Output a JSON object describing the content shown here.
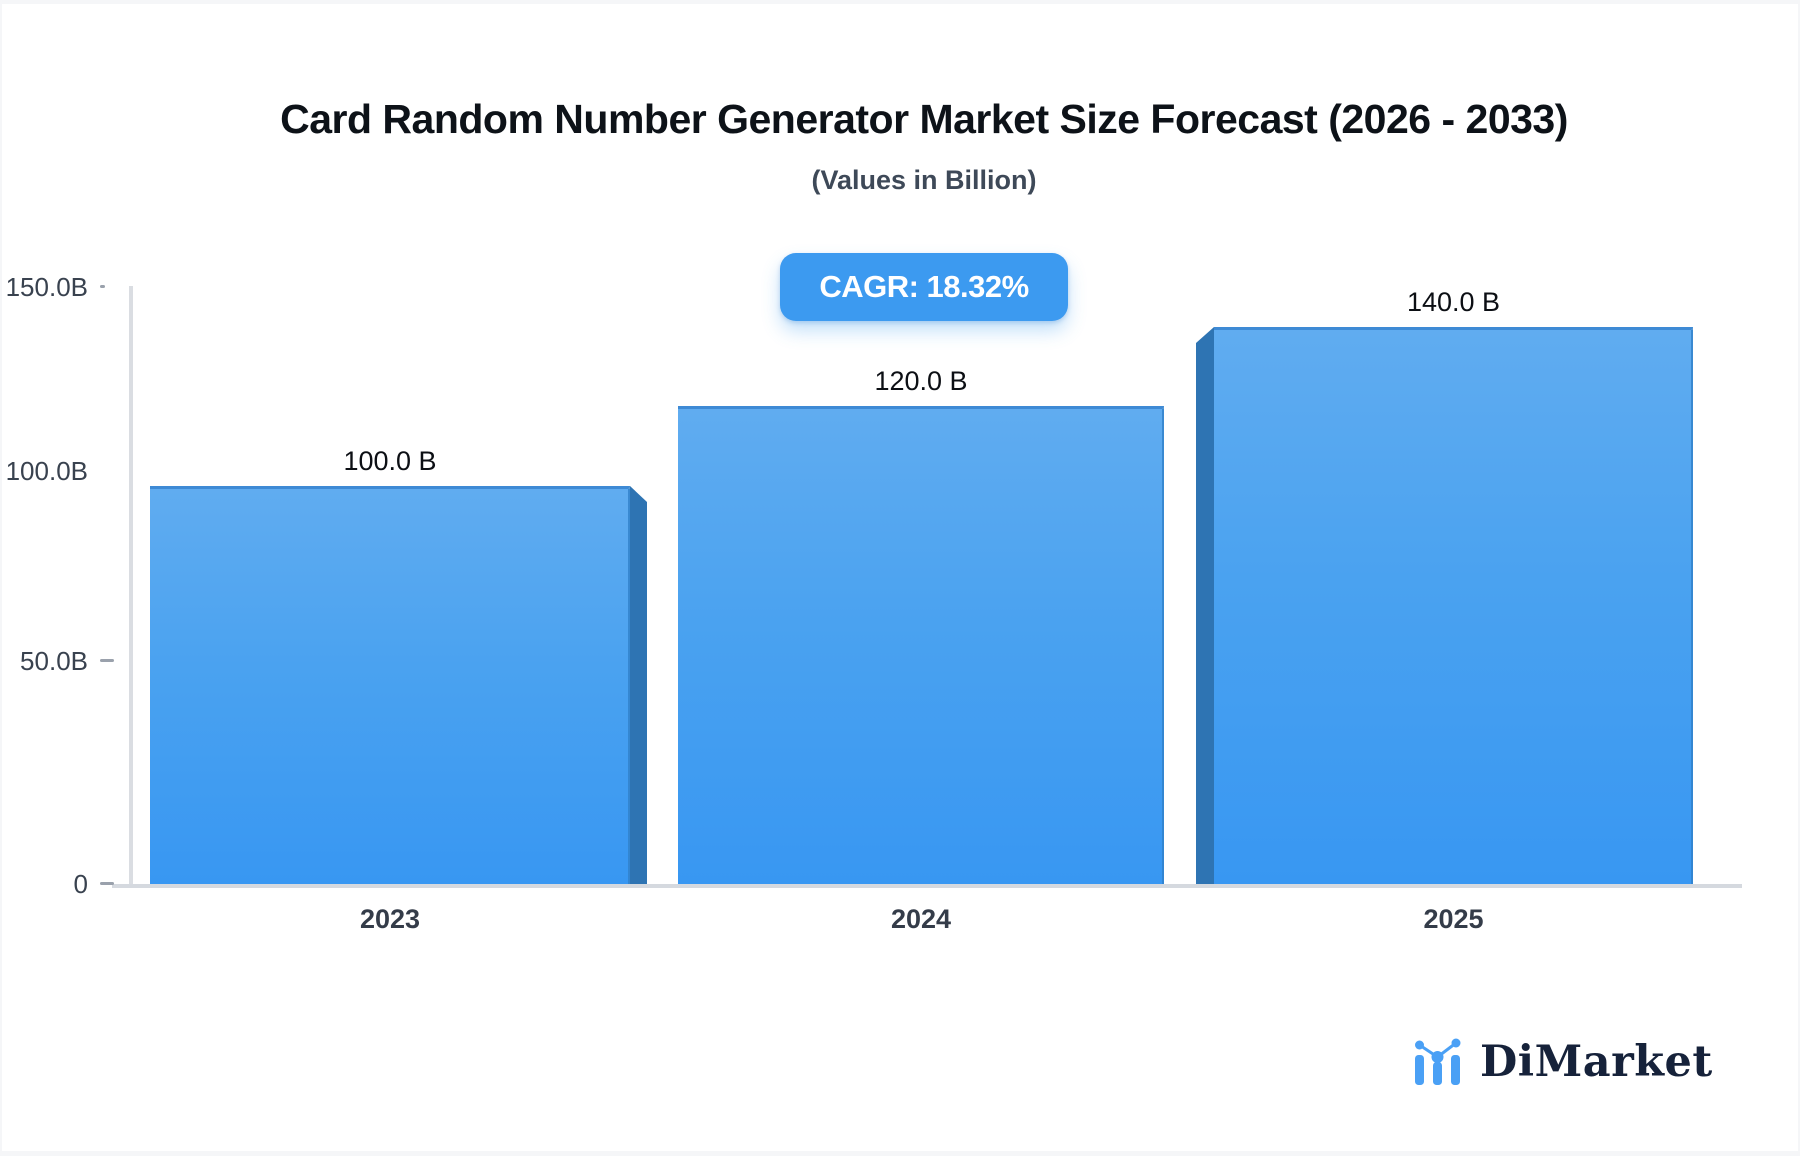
{
  "header": {
    "title": "Card Random Number Generator Market Size Forecast (2026 - 2033)",
    "subtitle": "(Values in Billion)"
  },
  "badge": {
    "label": "CAGR: 18.32%",
    "bg": "#3c9af0"
  },
  "chart_data": {
    "type": "bar",
    "title": "Card Random Number Generator Market Size Forecast (2026 - 2033)",
    "subtitle": "(Values in Billion)",
    "annotation": "CAGR: 18.32%",
    "categories": [
      "2023",
      "2024",
      "2025"
    ],
    "values": [
      100,
      120,
      140
    ],
    "value_labels": [
      "100.0 B",
      "120.0 B",
      "140.0 B"
    ],
    "unit": "Billion",
    "ylim": [
      0,
      150
    ],
    "ytick_labels": [
      "150.0B",
      "100.0B",
      "50.0B",
      "0"
    ],
    "ytick_values": [
      150,
      100,
      50,
      0
    ],
    "grid": false,
    "legend": "none",
    "colors": {
      "bar_top": "#60acf0",
      "bar_bottom": "#3897f2",
      "bar_side_3d": "#2e74b3",
      "axis_line": "#d5d9df",
      "badge_bg": "#3c9af0"
    }
  },
  "footer": {
    "brand": "DiMarket"
  }
}
